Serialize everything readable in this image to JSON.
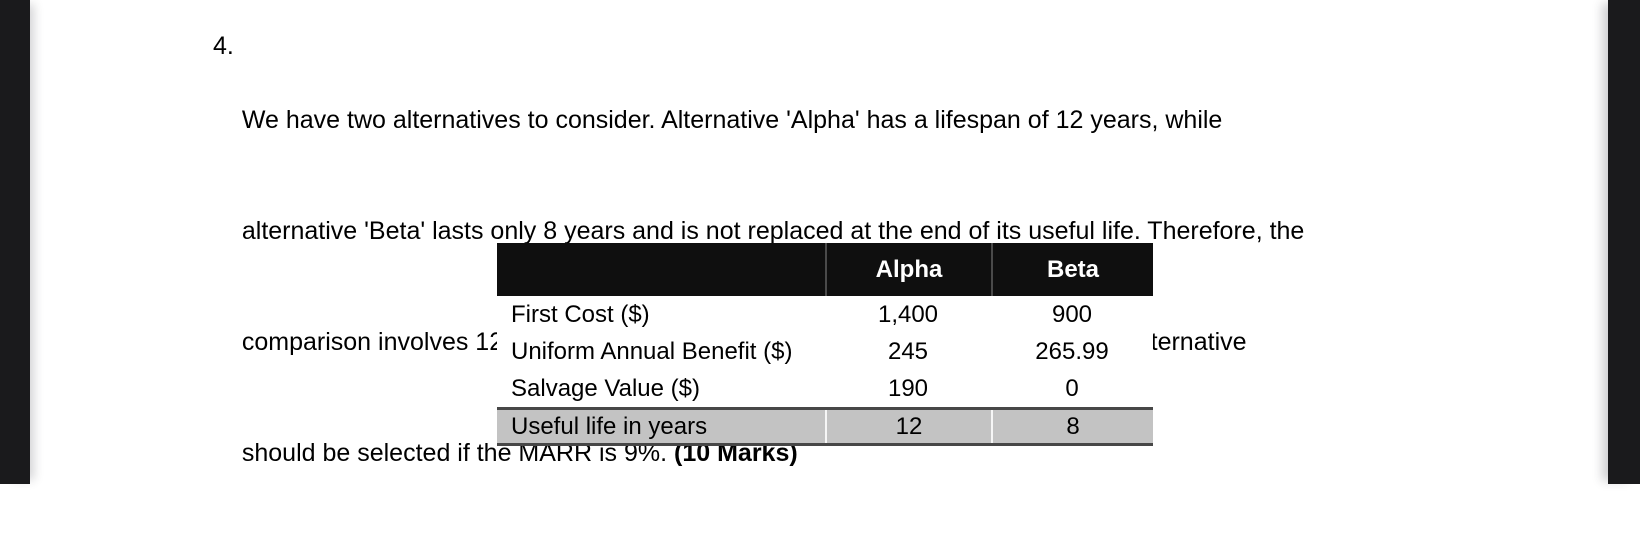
{
  "page": {
    "background_color": "#ffffff",
    "gutter_color": "#1a1a1c"
  },
  "question": {
    "number": "4.",
    "lines": [
      "We have two alternatives to consider. Alternative 'Alpha' has a lifespan of 12 years, while",
      "alternative 'Beta' lasts only 8 years and is not replaced at the end of its useful life. Therefore, the",
      "comparison involves 12 years of Alpha versus 8 years of Beta. Determine which alternative",
      "should be selected if the MARR is 9%. "
    ],
    "marks": "(10 Marks)"
  },
  "table": {
    "columns": {
      "label": "",
      "alpha": "Alpha",
      "beta": "Beta"
    },
    "rows": [
      {
        "label": "First Cost ($)",
        "alpha": "1,400",
        "beta": "900"
      },
      {
        "label": "Uniform Annual Benefit ($)",
        "alpha": "245",
        "beta": "265.99"
      },
      {
        "label": "Salvage Value ($)",
        "alpha": "190",
        "beta": "0"
      }
    ],
    "footer_row": {
      "label": "Useful life in years",
      "alpha": "12",
      "beta": "8"
    },
    "colors": {
      "header_bg": "#0f0f0f",
      "header_text": "#ffffff",
      "highlight_row_bg": "#c3c3c3",
      "rule_dark": "#474747"
    }
  }
}
